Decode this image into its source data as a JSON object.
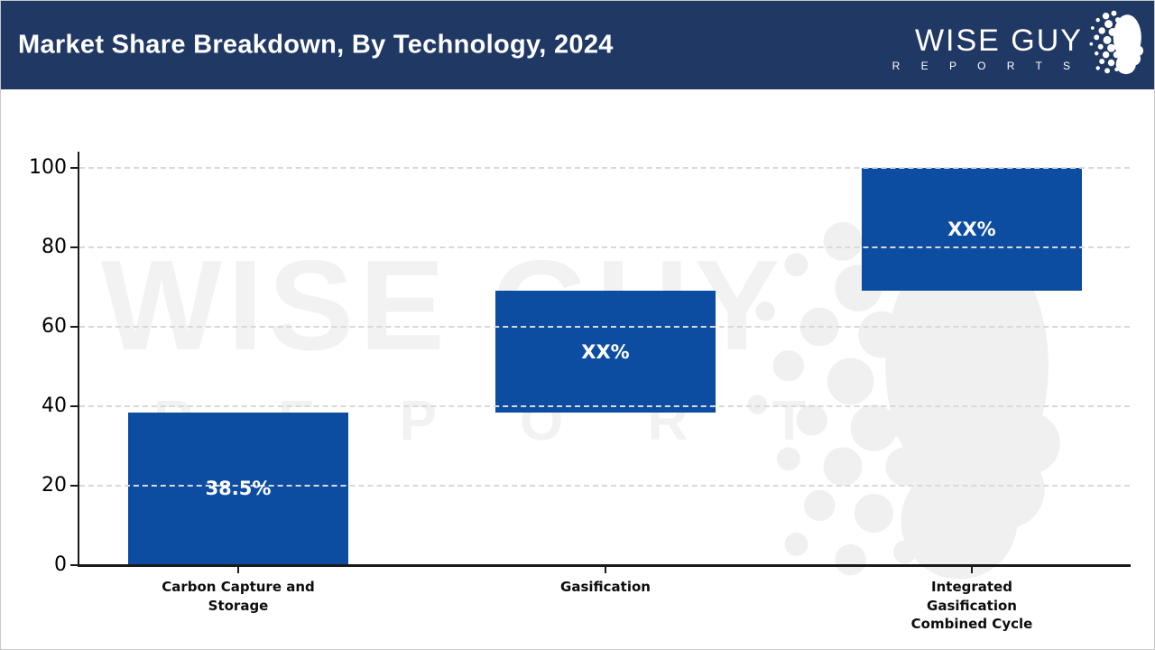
{
  "page": {
    "background": "#ffffff",
    "border_color": "#c9c9c9"
  },
  "header": {
    "bg_color": "#203864",
    "title": "Market Share Breakdown, By Technology, 2024",
    "logo": {
      "name": "WISE GUY",
      "tagline": "R E P O R T S"
    }
  },
  "watermark": {
    "line1": "WISE GUY",
    "line2": "R E P O R T S"
  },
  "chart_data": {
    "type": "bar",
    "subtype": "floating-segment-waterfall",
    "title": "Market Share Breakdown, By Technology, 2024",
    "category_names": [
      "Carbon Capture and Storage",
      "Gasification",
      "Integrated Gasification Combined Cycle"
    ],
    "category_label_lines": [
      [
        "Carbon Capture and",
        "Storage"
      ],
      [
        "Gasification"
      ],
      [
        "Integrated",
        "Gasification",
        "Combined Cycle"
      ]
    ],
    "bars": [
      {
        "start": 0,
        "end": 38.5,
        "label": "38.5%"
      },
      {
        "start": 38.5,
        "end": 69,
        "label": "XX%"
      },
      {
        "start": 69,
        "end": 100,
        "label": "XX%"
      }
    ],
    "ylim": [
      0,
      100
    ],
    "yticks": [
      0,
      20,
      40,
      60,
      80,
      100
    ],
    "ytick_labels": [
      "0",
      "20",
      "40",
      "60",
      "80",
      "100"
    ],
    "xlabel": "",
    "ylabel": "",
    "bar_color": "#0c4da1",
    "bar_label_color": "#ffffff",
    "grid": "dashed horizontal",
    "gridline_color": "#d9d9d9",
    "axis_color": "#1a1a1a",
    "legend": "none"
  }
}
